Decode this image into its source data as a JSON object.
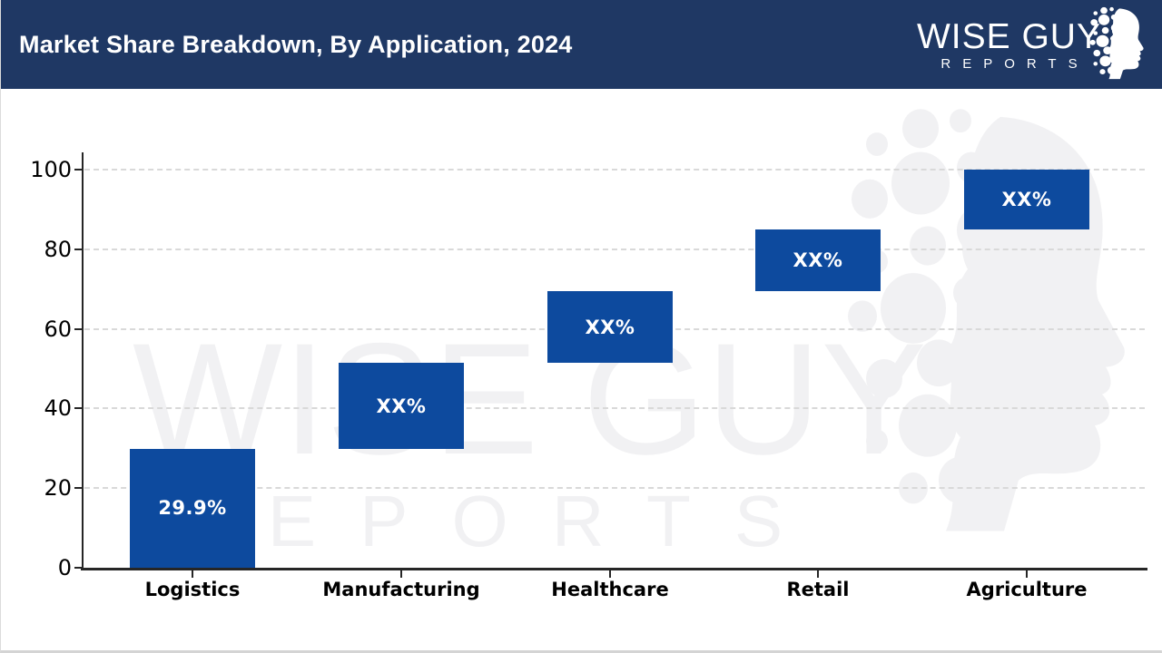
{
  "header": {
    "title": "Market Share Breakdown, By Application, 2024"
  },
  "logo": {
    "primary": "WISE GUY",
    "secondary": "REPORTS"
  },
  "watermark": {
    "primary": "WISE GUY",
    "secondary": "REPORTS"
  },
  "chart_data": {
    "type": "bar",
    "subtype": "waterfall",
    "title": "Market Share Breakdown, By Application, 2024",
    "categories": [
      "Logistics",
      "Manufacturing",
      "Healthcare",
      "Retail",
      "Agriculture"
    ],
    "segments": [
      {
        "category": "Logistics",
        "start": 0,
        "end": 29.9,
        "label": "29.9%"
      },
      {
        "category": "Manufacturing",
        "start": 29.9,
        "end": 51.4,
        "label": "XX%"
      },
      {
        "category": "Healthcare",
        "start": 51.4,
        "end": 69.5,
        "label": "XX%"
      },
      {
        "category": "Retail",
        "start": 69.5,
        "end": 85.0,
        "label": "XX%"
      },
      {
        "category": "Agriculture",
        "start": 85.0,
        "end": 100,
        "label": "XX%"
      }
    ],
    "y_ticks": [
      0,
      20,
      40,
      60,
      80,
      100
    ],
    "ylim": [
      0,
      105
    ],
    "xlabel": "",
    "ylabel": "",
    "grid": "horizontal-dashed",
    "legend": "none",
    "bar_color": "#0d4a9e",
    "bar_label_color": "#ffffff"
  },
  "colors": {
    "header_bg": "#1f3864",
    "bar": "#0d4a9e",
    "watermark": "#f1f1f3",
    "gridline": "#d9d9d9",
    "axis": "#262626"
  }
}
